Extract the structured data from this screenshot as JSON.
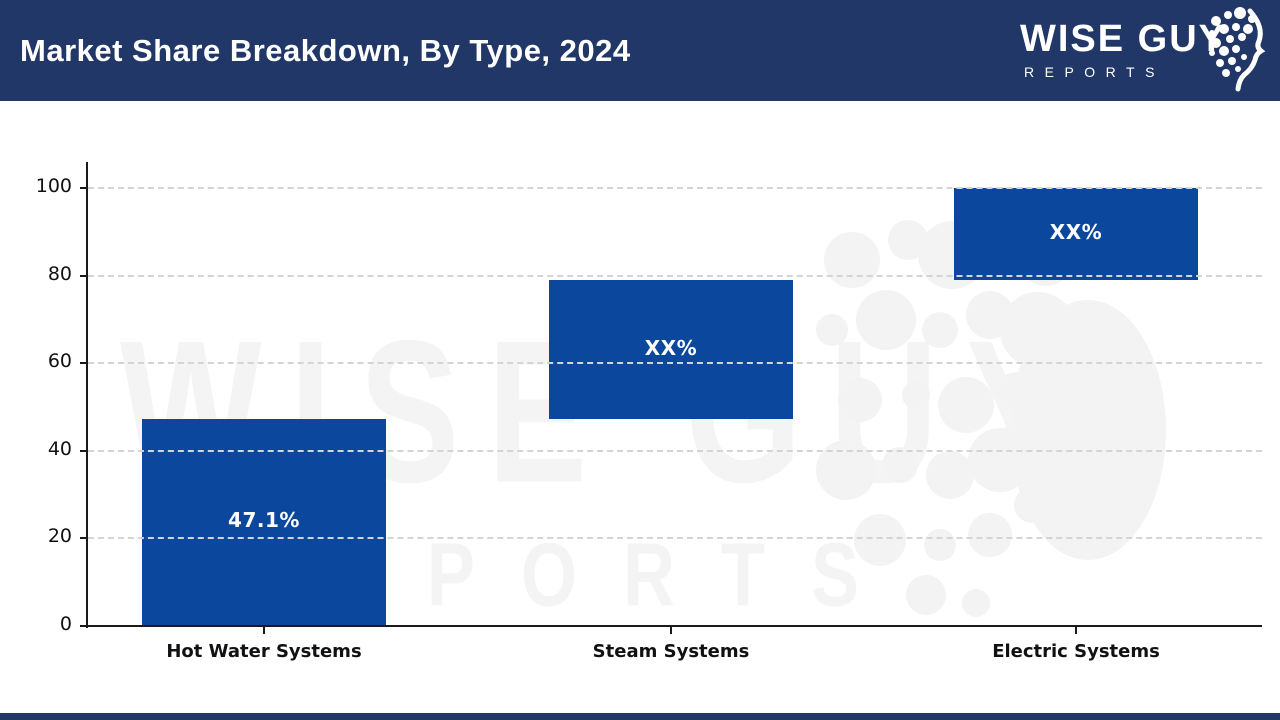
{
  "header": {
    "title": "Market Share Breakdown, By Type, 2024",
    "logo_line1": "WISE GUY",
    "logo_line2": "REPORTS"
  },
  "watermark": {
    "line1": "WISE GUY",
    "line2": "REPORTS"
  },
  "chart_data": {
    "type": "bar",
    "variant": "waterfall-floating-bars",
    "title": "Market Share Breakdown, By Type, 2024",
    "categories": [
      "Hot Water Systems",
      "Steam Systems",
      "Electric Systems"
    ],
    "bars": [
      {
        "category": "Hot Water Systems",
        "start": 0,
        "end": 47.1,
        "label": "47.1%"
      },
      {
        "category": "Steam Systems",
        "start": 47.1,
        "end": 78.9,
        "label": "XX%"
      },
      {
        "category": "Electric Systems",
        "start": 78.9,
        "end": 100,
        "label": "XX%"
      }
    ],
    "xlabel": "",
    "ylabel": "",
    "ylim": [
      0,
      100
    ],
    "yticks": [
      0,
      20,
      40,
      60,
      80,
      100
    ],
    "grid": "horizontal-dashed",
    "legend": null,
    "colors": {
      "bar": "#0c479e",
      "bar_label": "#ffffff",
      "grid": "#d4d4d4",
      "axis": "#1a1a1a",
      "tick_label": "#111111",
      "category_label": "#111111",
      "header_bg": "#213768",
      "footer_bg": "#213768",
      "watermark": "#f4f4f4"
    }
  }
}
